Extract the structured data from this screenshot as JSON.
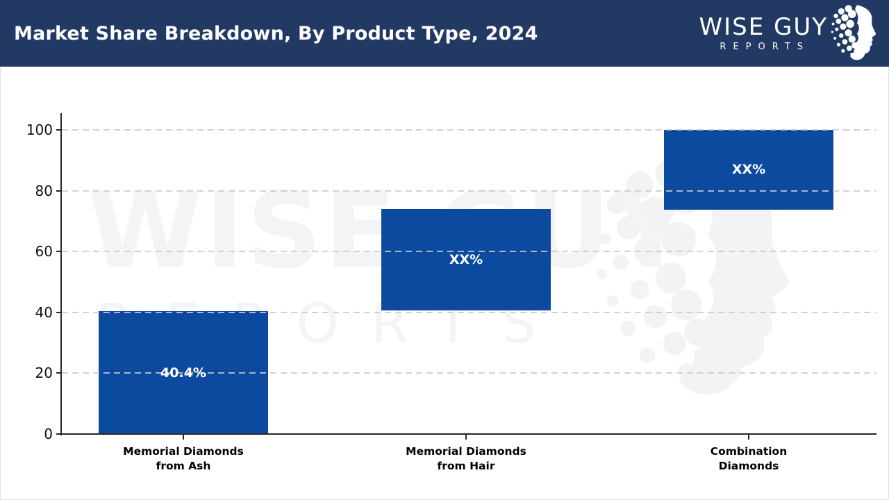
{
  "header": {
    "title": "Market Share Breakdown, By Product Type, 2024",
    "bg_color": "#223A63",
    "logo": {
      "line1": "WISE GUY",
      "line2": "REPORTS"
    }
  },
  "watermark": {
    "line1": "WISE GUY",
    "line2": "REPORTS"
  },
  "chart_data": {
    "type": "bar",
    "subtype": "floating-segment-waterfall",
    "title": "Market Share Breakdown, By Product Type, 2024",
    "categories": [
      [
        "Memorial Diamonds",
        "from Ash"
      ],
      [
        "Memorial Diamonds",
        "from Hair"
      ],
      [
        "Combination",
        "Diamonds"
      ]
    ],
    "bars": [
      {
        "label": "40.4%",
        "start": 0,
        "end": 40.4
      },
      {
        "label": "XX%",
        "start": 40.6,
        "end": 73.9
      },
      {
        "label": "XX%",
        "start": 73.8,
        "end": 100
      }
    ],
    "yticks": [
      0,
      20,
      40,
      60,
      80,
      100
    ],
    "ylim": [
      0,
      105
    ],
    "xlabel": "",
    "ylabel": "",
    "legend": "none",
    "grid": "horizontal-dashed",
    "bar_color": "#0B4A9E",
    "bar_label_color": "#FFFFFF",
    "axis_color": "#262626",
    "grid_color": "#CACACE",
    "tick_label_color": "#111111"
  }
}
